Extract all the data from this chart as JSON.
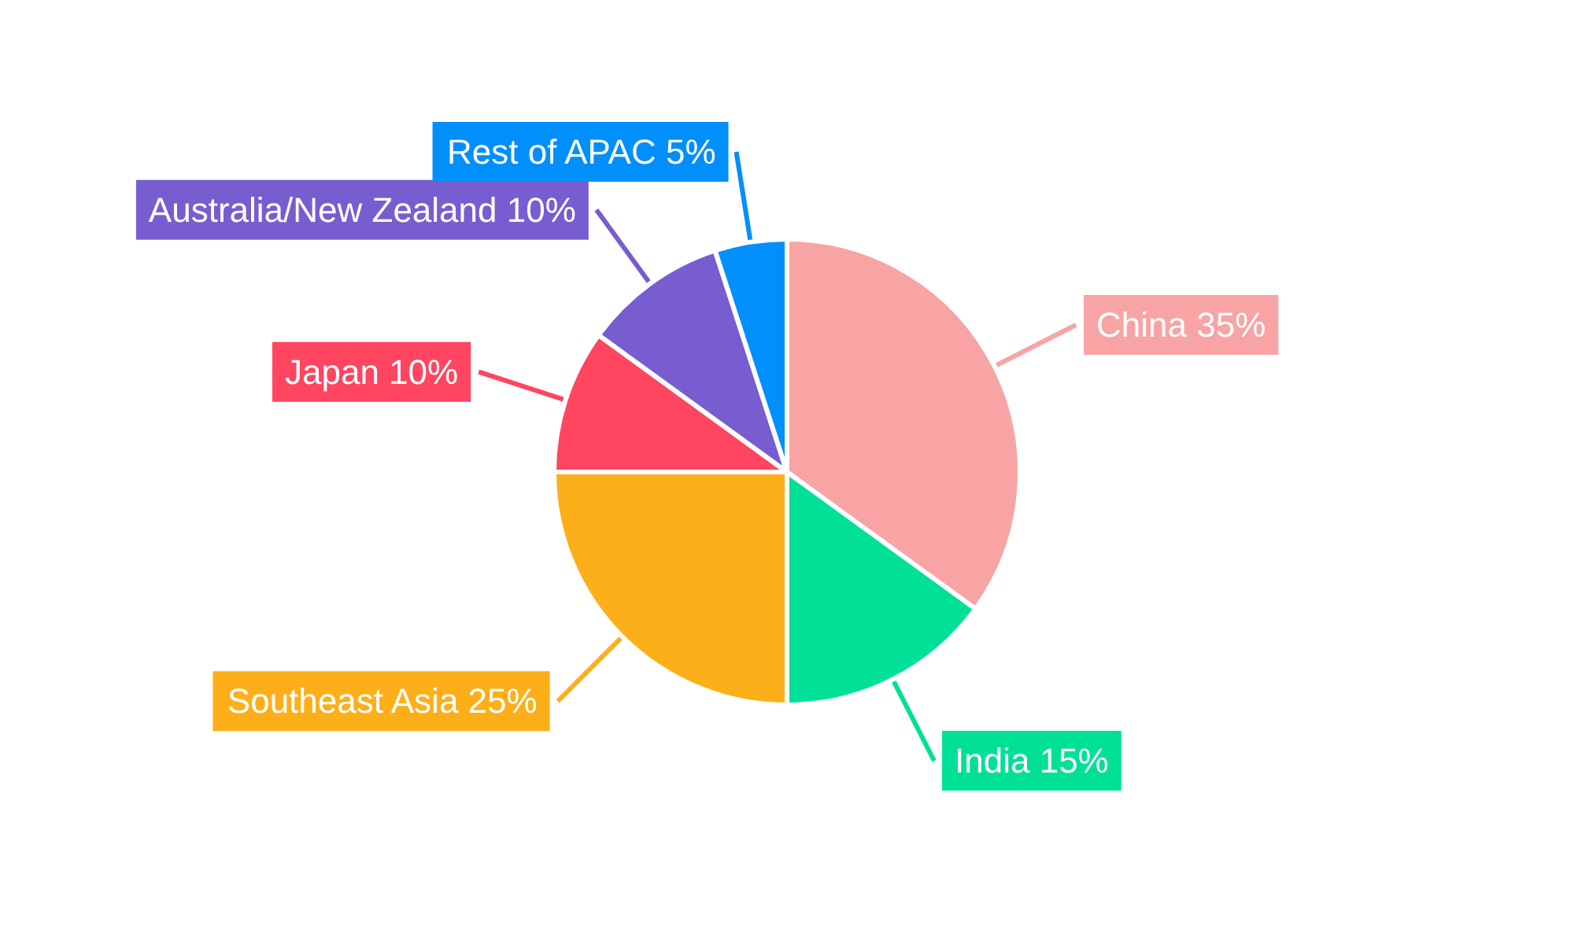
{
  "chart_data": {
    "type": "pie",
    "categories": [
      "China",
      "India",
      "Southeast Asia",
      "Japan",
      "Australia/New Zealand",
      "Rest of APAC"
    ],
    "values": [
      35,
      15,
      25,
      10,
      10,
      5
    ],
    "value_labels": [
      "35%",
      "15%",
      "25%",
      "10%",
      "10%",
      "5%"
    ],
    "colors": [
      "#f8a3a4",
      "#00e096",
      "#fdaf1a",
      "#ff4560",
      "#775dd0",
      "#008ffb"
    ],
    "legend": false
  }
}
